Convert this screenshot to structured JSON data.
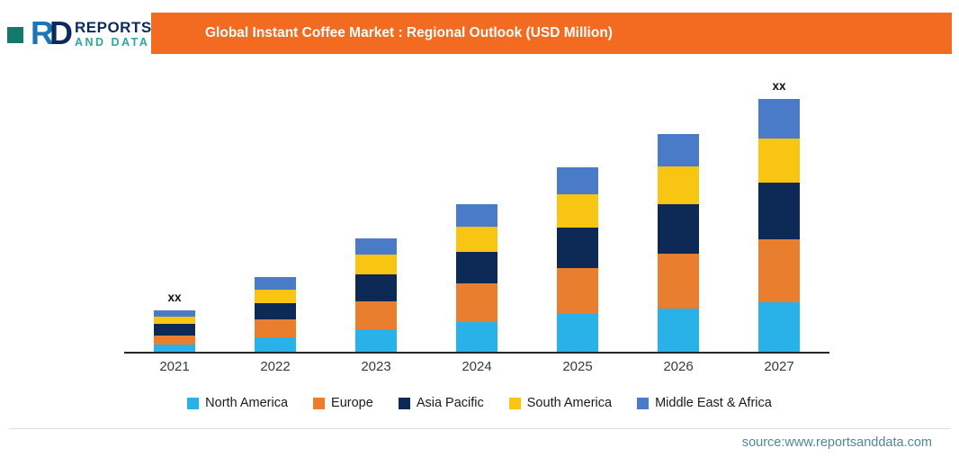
{
  "header": {
    "title": "Global Instant Coffee Market : Regional Outlook (USD Million)",
    "banner_color": "#f26b21",
    "logo": {
      "mark_letter_1": "R",
      "mark_letter_2": "D",
      "line1": "REPORTS",
      "line2": "AND DATA",
      "mark_blue": "#1b75bb",
      "navy": "#0d2a5c",
      "teal": "#2aa7a0",
      "accent_square_color": "#15786b"
    }
  },
  "chart_data": {
    "type": "bar",
    "stacked": true,
    "title": "Global Instant Coffee Market : Regional Outlook (USD Million)",
    "unit": "USD Million",
    "categories": [
      "2021",
      "2022",
      "2023",
      "2024",
      "2025",
      "2026",
      "2027"
    ],
    "series": [
      {
        "name": "North America",
        "color": "#29b2e7",
        "values": [
          8,
          16,
          25,
          33,
          42,
          48,
          55
        ]
      },
      {
        "name": "Europe",
        "color": "#e87e2e",
        "values": [
          10,
          20,
          31,
          43,
          51,
          61,
          70
        ]
      },
      {
        "name": "Asia Pacific",
        "color": "#0d2a57",
        "values": [
          13,
          18,
          30,
          35,
          45,
          55,
          63
        ]
      },
      {
        "name": "South America",
        "color": "#f9c513",
        "values": [
          8,
          15,
          22,
          28,
          37,
          42,
          49
        ]
      },
      {
        "name": "Middle East & Africa",
        "color": "#4a7bc8",
        "values": [
          7,
          14,
          18,
          25,
          30,
          36,
          44
        ]
      }
    ],
    "annotations": [
      "xx",
      "",
      "",
      "",
      "",
      "",
      "xx"
    ],
    "values_are_relative": true,
    "y_axis_visible": false,
    "grid": false,
    "legend_position": "bottom"
  },
  "footer": {
    "source": "source:www.reportsanddata.com"
  }
}
